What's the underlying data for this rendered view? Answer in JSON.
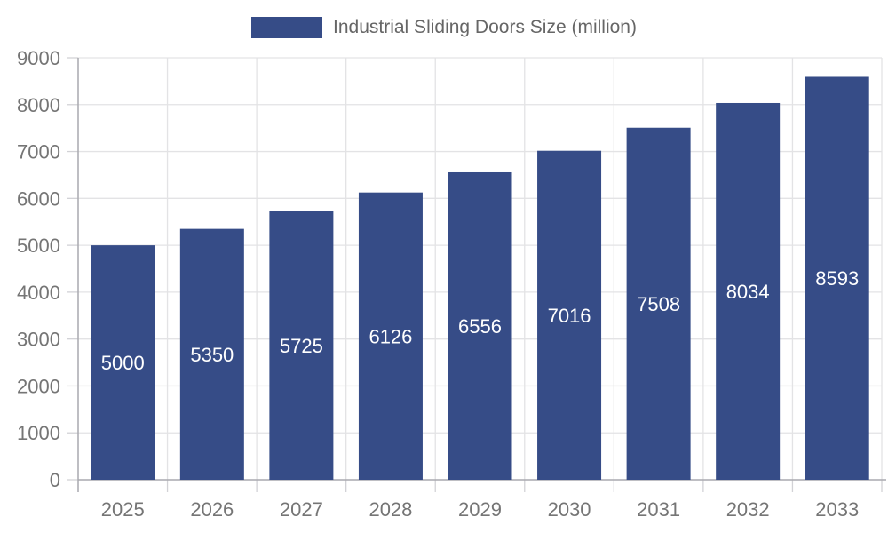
{
  "chart_data": {
    "type": "bar",
    "title": "Industrial Sliding Doors Size (million)",
    "categories": [
      "2025",
      "2026",
      "2027",
      "2028",
      "2029",
      "2030",
      "2031",
      "2032",
      "2033"
    ],
    "values": [
      5000,
      5350,
      5725,
      6126,
      6556,
      7016,
      7508,
      8034,
      8593
    ],
    "value_labels": [
      "5000",
      "5350",
      "5725",
      "6126",
      "6556",
      "7016",
      "7508",
      "8034",
      "8593"
    ],
    "xlabel": "",
    "ylabel": "",
    "ylim": [
      0,
      9000
    ],
    "ytick_interval": 1000,
    "ytick_labels": [
      "0",
      "1000",
      "2000",
      "3000",
      "4000",
      "5000",
      "6000",
      "7000",
      "8000",
      "9000"
    ],
    "grid": true,
    "legend": {
      "position": "top-center",
      "items": [
        {
          "label": "Industrial Sliding Doors Size (million)",
          "color": "#364C87"
        }
      ]
    },
    "colors": {
      "bar": "#364C87",
      "value_label": "#ffffff",
      "axis_text": "#757575",
      "legend_text": "#666666",
      "gridline": "#e3e3e5",
      "tick": "#d2d2d6",
      "axis_line": "#a9a9af",
      "background": "#ffffff"
    }
  }
}
